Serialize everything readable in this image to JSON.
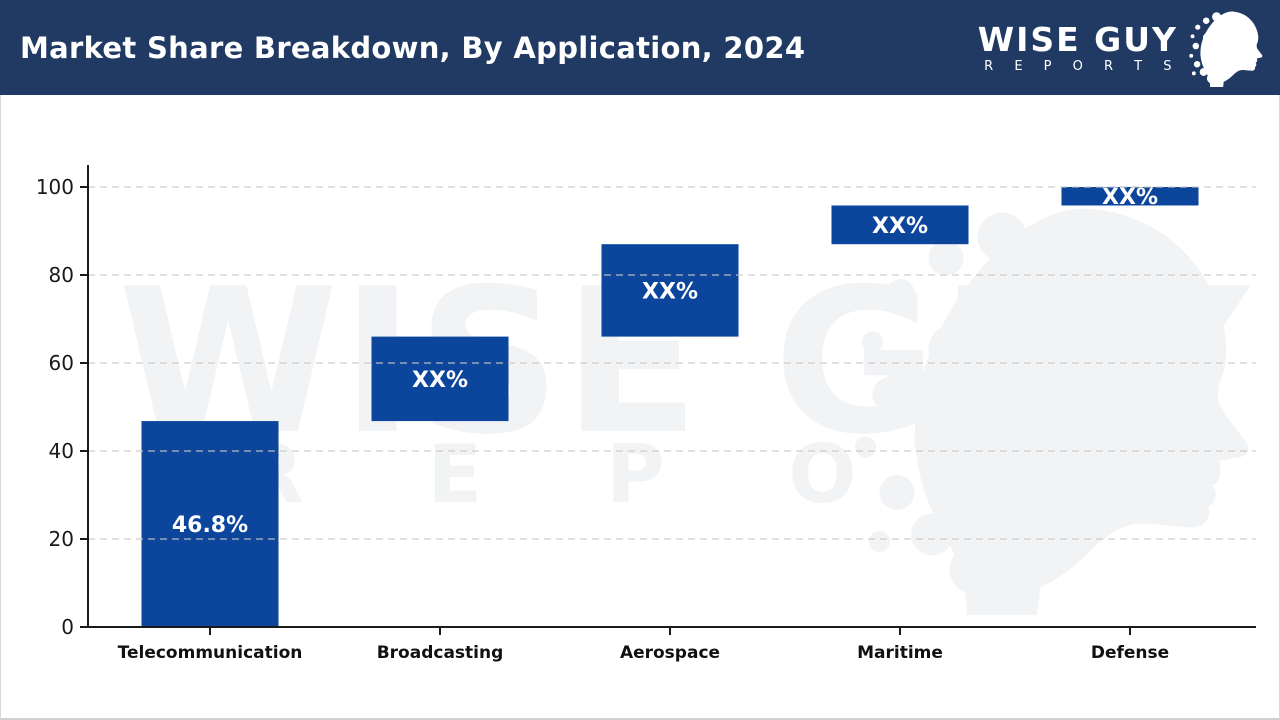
{
  "header": {
    "title": "Market Share Breakdown, By Application, 2024",
    "logo": {
      "line1": "WISE GUY",
      "line2": "R E P O R T S"
    }
  },
  "watermark": {
    "line1": "WISE GUY",
    "line2": "R E P O R T S"
  },
  "colors": {
    "header_bg": "#213a64",
    "title_text": "#ffffff",
    "bar": "#0b459c",
    "bar_label": "#ffffff",
    "grid": "#c9c9c9",
    "axis": "#1a1a1a",
    "x_label": "#111111",
    "watermark": "#f2f3f5"
  },
  "chart_data": {
    "type": "bar",
    "subtype": "waterfall-breakdown",
    "title": "Market Share Breakdown, By Application, 2024",
    "categories": [
      "Telecommunication",
      "Broadcasting",
      "Aerospace",
      "Maritime",
      "Defense"
    ],
    "segments": [
      {
        "category": "Telecommunication",
        "start": 0,
        "end": 46.8,
        "size": 46.8,
        "label": "46.8%"
      },
      {
        "category": "Broadcasting",
        "start": 46.8,
        "end": 66,
        "size": 19.2,
        "label": "XX%"
      },
      {
        "category": "Aerospace",
        "start": 66,
        "end": 87,
        "size": 21,
        "label": "XX%"
      },
      {
        "category": "Maritime",
        "start": 87,
        "end": 95.8,
        "size": 8.8,
        "label": "XX%"
      },
      {
        "category": "Defense",
        "start": 95.8,
        "end": 100,
        "size": 4.2,
        "label": "XX%"
      }
    ],
    "xlabel": "",
    "ylabel": "",
    "ylim": [
      0,
      100
    ],
    "yticks": [
      0,
      20,
      40,
      60,
      80,
      100
    ],
    "grid": "horizontal-dashed",
    "legend": "none",
    "value_unit": "%"
  }
}
